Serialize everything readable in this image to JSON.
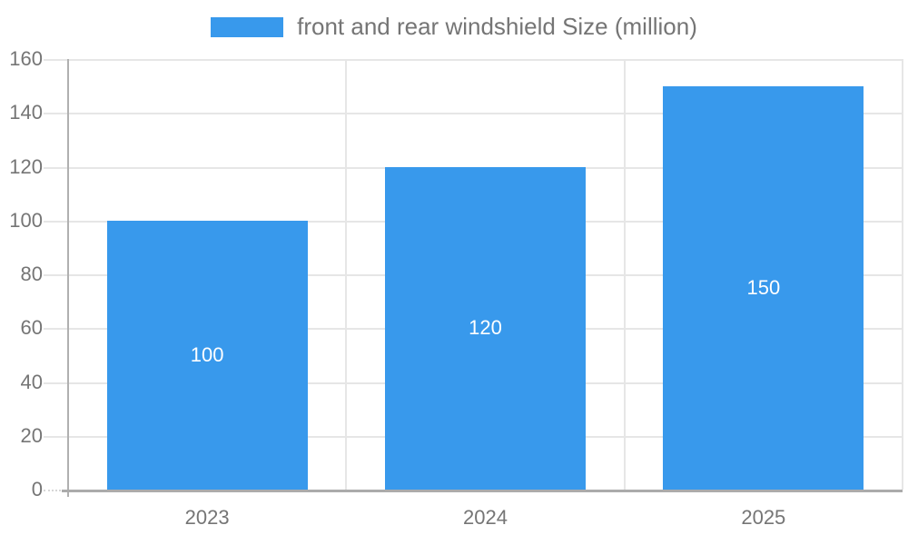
{
  "legend": {
    "label": "front and rear windshield Size (million)",
    "swatch_color": "#3899ec"
  },
  "chart_data": {
    "type": "bar",
    "title": "front and rear windshield Size (million)",
    "categories": [
      "2023",
      "2024",
      "2025"
    ],
    "values": [
      100,
      120,
      150
    ],
    "value_labels": [
      "100",
      "120",
      "150"
    ],
    "xlabel": "",
    "ylabel": "",
    "ylim": [
      0,
      160
    ],
    "ytick_step": 20,
    "yticks": [
      0,
      20,
      40,
      60,
      80,
      100,
      120,
      140,
      160
    ],
    "grid": true,
    "legend_position": "top-center",
    "bar_color": "#3899ec",
    "value_label_color": "#ffffff",
    "axis_text_color": "#757575",
    "gridline_color": "#e6e6e6",
    "axis_line_color": "#b0b0b0"
  }
}
